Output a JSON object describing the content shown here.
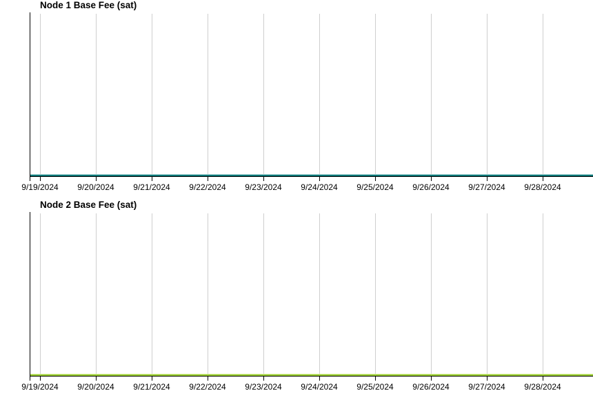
{
  "page": {
    "background": "#ffffff"
  },
  "chart_data": [
    {
      "type": "line",
      "title": "Node 1 Base Fee (sat)",
      "x": [
        "9/19/2024",
        "9/20/2024",
        "9/21/2024",
        "9/22/2024",
        "9/23/2024",
        "9/24/2024",
        "9/25/2024",
        "9/26/2024",
        "9/27/2024",
        "9/28/2024"
      ],
      "series": [
        {
          "name": "Node 1 Base Fee",
          "values": [
            0,
            0,
            0,
            0,
            0,
            0,
            0,
            0,
            0,
            0
          ]
        }
      ],
      "xlabel": "",
      "ylabel": "",
      "y_tick_labels": "none",
      "ylim": [
        0,
        null
      ],
      "grid": "vertical-only",
      "legend": "none",
      "line_color": "#0b7575",
      "line_color_edge": "#9ed2d2",
      "axis_color": "#000000",
      "gridline_color": "#cecece"
    },
    {
      "type": "line",
      "title": "Node 2 Base Fee (sat)",
      "x": [
        "9/19/2024",
        "9/20/2024",
        "9/21/2024",
        "9/22/2024",
        "9/23/2024",
        "9/24/2024",
        "9/25/2024",
        "9/26/2024",
        "9/27/2024",
        "9/28/2024"
      ],
      "series": [
        {
          "name": "Node 2 Base Fee",
          "values": [
            0,
            0,
            0,
            0,
            0,
            0,
            0,
            0,
            0,
            0
          ]
        }
      ],
      "xlabel": "",
      "ylabel": "",
      "y_tick_labels": "none",
      "ylim": [
        0,
        null
      ],
      "grid": "vertical-only",
      "legend": "none",
      "line_color": "#9acd32",
      "line_color_edge": "#d6ec9e",
      "axis_color": "#000000",
      "gridline_color": "#cecece"
    }
  ]
}
